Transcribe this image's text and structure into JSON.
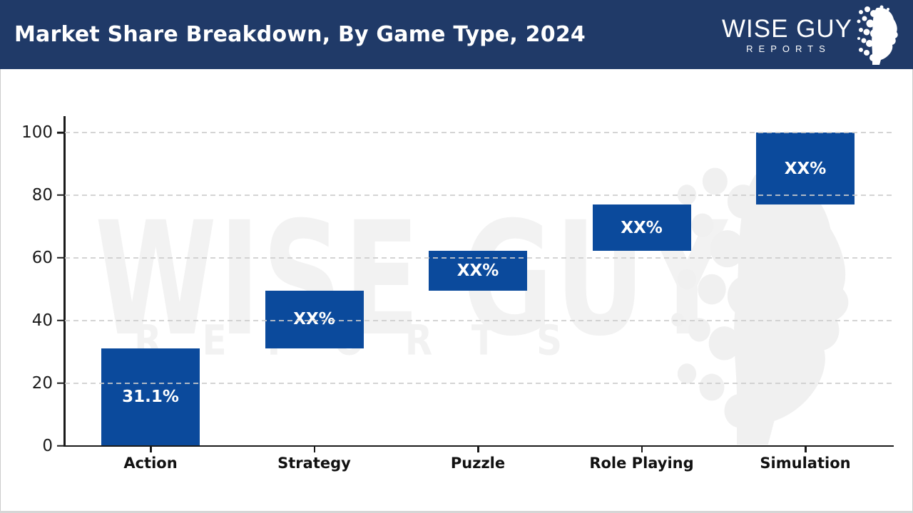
{
  "header": {
    "title": "Market Share Breakdown, By Game Type, 2024",
    "logo": {
      "wordmark": "WISE GUY",
      "sub": "REPORTS"
    }
  },
  "watermark": {
    "wordmark": "WISE GUY",
    "sub": "REPORTS"
  },
  "colors": {
    "header_bg": "#203a68",
    "bar": "#0b4a9c",
    "grid": "#cccccc",
    "axis": "#1a1a1a",
    "bar_label": "#ffffff",
    "watermark": "#f2f2f2"
  },
  "chart_data": {
    "type": "bar",
    "subtype": "waterfall",
    "title": "Market Share Breakdown, By Game Type, 2024",
    "categories": [
      "Action",
      "Strategy",
      "Puzzle",
      "Role Playing",
      "Simulation"
    ],
    "segments": [
      {
        "category": "Action",
        "start": 0,
        "end": 31.1,
        "value": 31.1,
        "label": "31.1%"
      },
      {
        "category": "Strategy",
        "start": 31.1,
        "end": 49.5,
        "value": 18.4,
        "label": "XX%"
      },
      {
        "category": "Puzzle",
        "start": 49.5,
        "end": 62.2,
        "value": 12.7,
        "label": "XX%"
      },
      {
        "category": "Role Playing",
        "start": 62.2,
        "end": 77.0,
        "value": 14.8,
        "label": "XX%"
      },
      {
        "category": "Simulation",
        "start": 77.0,
        "end": 100.0,
        "value": 23.0,
        "label": "XX%"
      }
    ],
    "xlabel": "",
    "ylabel": "",
    "ylim": [
      0,
      100
    ],
    "yticks": [
      0,
      20,
      40,
      60,
      80,
      100
    ],
    "grid": "dashed-horizontal",
    "legend": "none",
    "bar_color": "#0b4a9c",
    "label_color": "#ffffff"
  }
}
